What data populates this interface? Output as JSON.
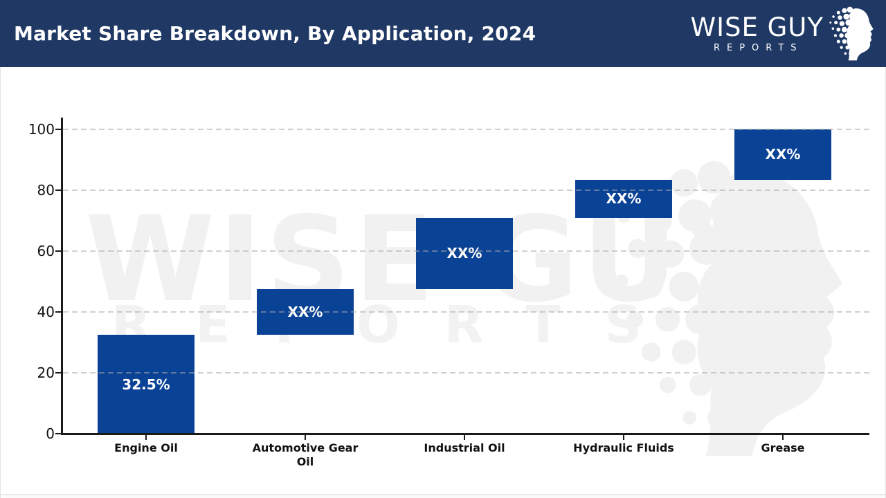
{
  "header": {
    "title": "Market Share Breakdown, By Application, 2024",
    "logo": {
      "wordmark": "WISE GUY",
      "sub": "REPORTS"
    }
  },
  "watermark": {
    "wordmark": "WISE GUY",
    "sub": "REPORTS"
  },
  "colors": {
    "header_bg": "#1f3864",
    "bar": "#0a4296",
    "bar_label": "#ffffff",
    "axis": "#1a1a1a",
    "gridline": "#c8c8c8"
  },
  "chart_data": {
    "type": "bar",
    "subtype": "floating-waterfall",
    "title": "Market Share Breakdown, By Application, 2024",
    "xlabel": "",
    "ylabel": "",
    "ylim": [
      0,
      100
    ],
    "yticks": [
      0,
      20,
      40,
      60,
      80,
      100
    ],
    "grid": "dashed-horizontal",
    "legend": "none",
    "categories": [
      "Engine Oil",
      "Automotive Gear Oil",
      "Industrial Oil",
      "Hydraulic Fluids",
      "Grease"
    ],
    "series": [
      {
        "name": "Market Share (%)",
        "segments": [
          {
            "category": "Engine Oil",
            "start": 0,
            "end": 32.5,
            "height": 32.5,
            "label": "32.5%"
          },
          {
            "category": "Automotive Gear Oil",
            "start": 32.5,
            "end": 47.5,
            "height": 15,
            "label": "XX%"
          },
          {
            "category": "Industrial Oil",
            "start": 47.5,
            "end": 71,
            "height": 23.5,
            "label": "XX%"
          },
          {
            "category": "Hydraulic Fluids",
            "start": 71,
            "end": 83.5,
            "height": 12.5,
            "label": "XX%"
          },
          {
            "category": "Grease",
            "start": 83.5,
            "end": 100,
            "height": 16.5,
            "label": "XX%"
          }
        ]
      }
    ]
  }
}
